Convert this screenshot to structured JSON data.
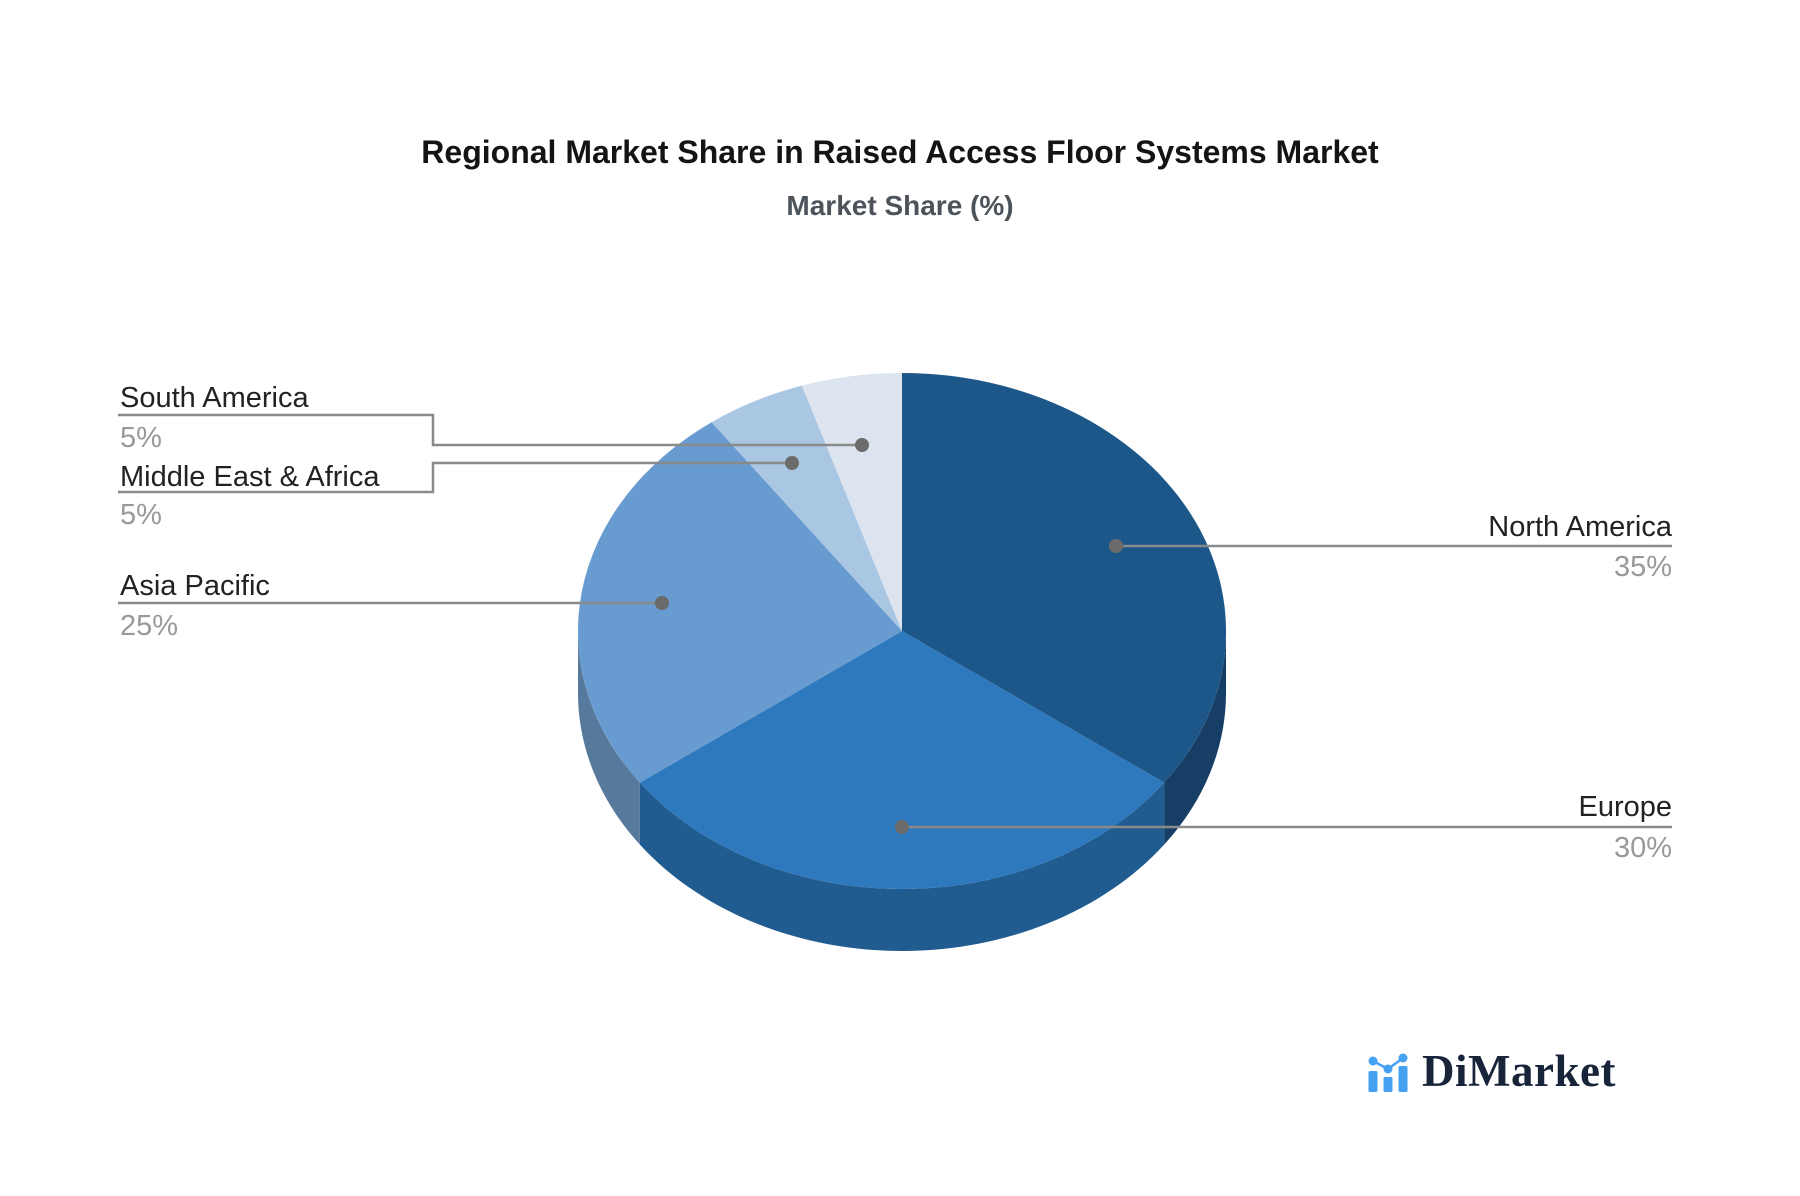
{
  "title": "Regional Market Share in Raised Access Floor Systems Market",
  "subtitle": "Market Share (%)",
  "brand": {
    "name": "DiMarket",
    "icon": "bar-chart-logo-icon",
    "icon_color": "#46A1F2",
    "text_color": "#18243a"
  },
  "chart_data": {
    "type": "pie",
    "style": "3d",
    "title": "Regional Market Share in Raised Access Floor Systems Market",
    "subtitle": "Market Share (%)",
    "unit": "%",
    "start_angle_deg": 0,
    "direction": "clockwise",
    "legend_position": "callout-labels",
    "label_color": "#222222",
    "value_color": "#98999c",
    "connector_color": "#8a8a8a",
    "dot_color": "#6b6b6b",
    "background_color": "#ffffff",
    "segments": [
      {
        "label": "North America",
        "value": 35,
        "display": "35%",
        "color": "#1D5789",
        "side_color": "#173F66"
      },
      {
        "label": "Europe",
        "value": 30,
        "display": "30%",
        "color": "#2E78BD",
        "side_color": "#205C90"
      },
      {
        "label": "Asia Pacific",
        "value": 25,
        "display": "25%",
        "color": "#689BCF",
        "side_color": "#56799C"
      },
      {
        "label": "Middle East & Africa",
        "value": 5,
        "display": "5%",
        "color": "#A9C6E2",
        "side_color": "#8FB0CF"
      },
      {
        "label": "South America",
        "value": 5,
        "display": "5%",
        "color": "#DCE4EF",
        "side_color": "#C2CDDC"
      }
    ]
  }
}
